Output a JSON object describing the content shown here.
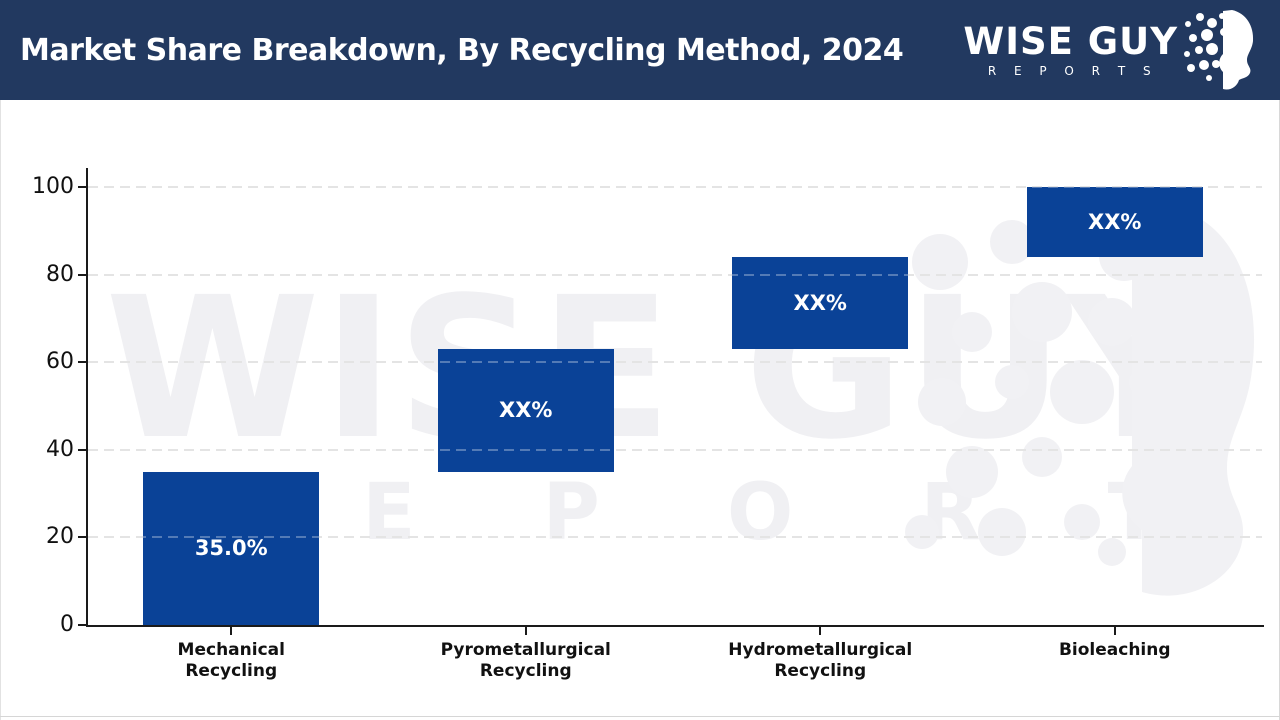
{
  "header": {
    "title": "Market Share Breakdown, By Recycling Method, 2024",
    "bg_color": "#223960",
    "logo": {
      "line1": "WISE GUY",
      "line2": "R E P O R T S"
    }
  },
  "watermark": {
    "line1": "WISE GUY",
    "line2": "REPORTS"
  },
  "chart_data": {
    "type": "bar",
    "subtype": "floating-waterfall",
    "title": "Market Share Breakdown, By Recycling Method, 2024",
    "xlabel": "",
    "ylabel": "",
    "ylim": [
      0,
      100
    ],
    "y_ticks": [
      0,
      20,
      40,
      60,
      80,
      100
    ],
    "grid": "dashed-horizontal",
    "legend": "none",
    "bar_color": "#0a4297",
    "bar_label_color": "#ffffff",
    "categories": [
      "Mechanical Recycling",
      "Pyrometallurgical Recycling",
      "Hydrometallurgical Recycling",
      "Bioleaching"
    ],
    "segments": [
      {
        "category": "Mechanical Recycling",
        "label_lines": [
          "Mechanical",
          "Recycling"
        ],
        "start": 0,
        "end": 35,
        "value": 35.0,
        "bar_label": "35.0%"
      },
      {
        "category": "Pyrometallurgical Recycling",
        "label_lines": [
          "Pyrometallurgical",
          "Recycling"
        ],
        "start": 35,
        "end": 63,
        "value": 28,
        "bar_label": "XX%"
      },
      {
        "category": "Hydrometallurgical Recycling",
        "label_lines": [
          "Hydrometallurgical",
          "Recycling"
        ],
        "start": 63,
        "end": 84,
        "value": 21,
        "bar_label": "XX%"
      },
      {
        "category": "Bioleaching",
        "label_lines": [
          "Bioleaching"
        ],
        "start": 84,
        "end": 100,
        "value": 16,
        "bar_label": "XX%"
      }
    ]
  }
}
